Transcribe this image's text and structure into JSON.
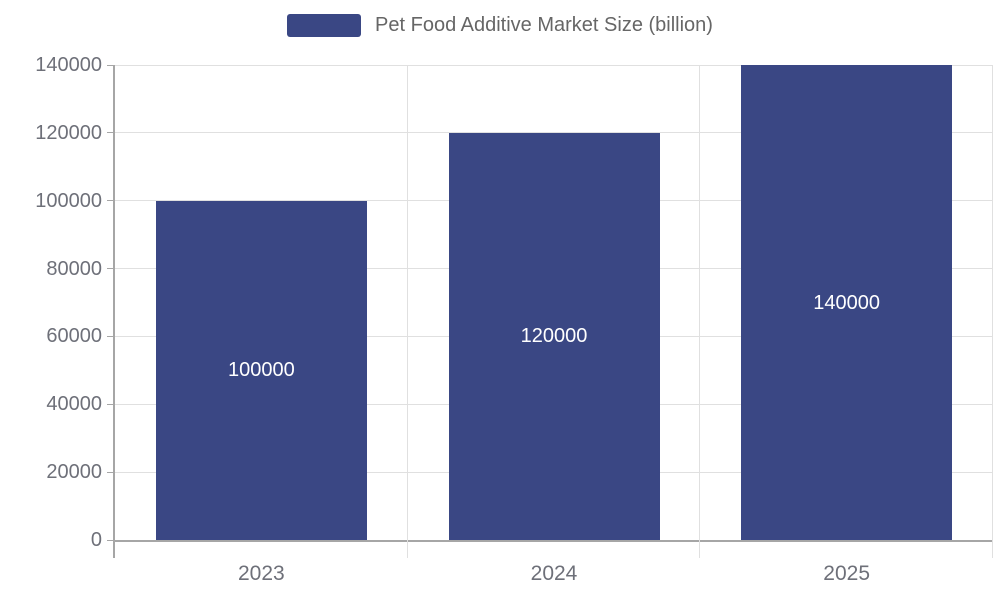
{
  "chart": {
    "legend": {
      "label": "Pet Food Additive Market Size (billion)"
    }
  },
  "style": {
    "bar_color": "#3A4784",
    "grid_color": "#E0E0E0",
    "axis_line_color": "#A6A6A6",
    "axis_label_color": "#6E7079",
    "legend_text_color": "#666666",
    "value_label_color": "#FFFFFF",
    "background_color": "#FFFFFF"
  },
  "chart_data": {
    "type": "bar",
    "title": "Pet Food Additive Market Size (billion)",
    "categories": [
      "2023",
      "2024",
      "2025"
    ],
    "series": [
      {
        "name": "Pet Food Additive Market Size (billion)",
        "values": [
          100000,
          120000,
          140000
        ]
      }
    ],
    "bar_labels": [
      "100000",
      "120000",
      "140000"
    ],
    "xlabel": "",
    "ylabel": "",
    "ylim": [
      0,
      140000
    ],
    "ytick_step": 20000,
    "ytick_labels": [
      "0",
      "20000",
      "40000",
      "60000",
      "80000",
      "100000",
      "120000",
      "140000"
    ],
    "grid": true,
    "legend_position": "top"
  }
}
